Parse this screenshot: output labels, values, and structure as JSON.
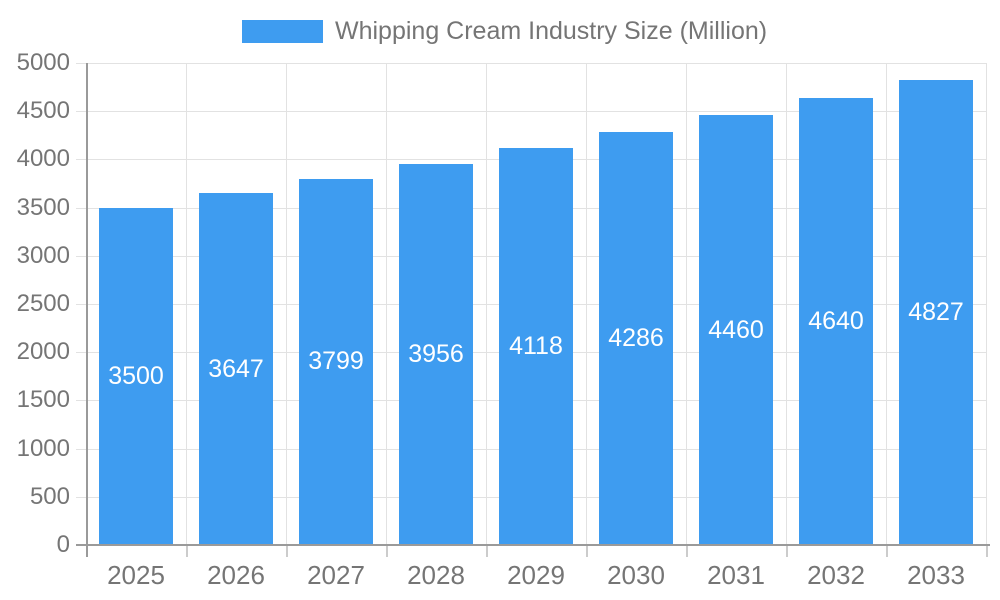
{
  "chart_data": {
    "type": "bar",
    "title": "Whipping Cream Industry Size (Million)",
    "categories": [
      "2025",
      "2026",
      "2027",
      "2028",
      "2029",
      "2030",
      "2031",
      "2032",
      "2033"
    ],
    "values": [
      3500,
      3647,
      3799,
      3956,
      4118,
      4286,
      4460,
      4640,
      4827
    ],
    "series_name": "Whipping Cream Industry Size (Million)",
    "xlabel": "",
    "ylabel": "",
    "ylim": [
      0,
      5000
    ],
    "ytick_step": 500,
    "ytick_labels": [
      "0",
      "500",
      "1000",
      "1500",
      "2000",
      "2500",
      "3000",
      "3500",
      "4000",
      "4500",
      "5000"
    ],
    "grid": true,
    "legend_position": "top-center",
    "value_labels": "inside-middle"
  },
  "colors": {
    "bar": "#3E9CF0",
    "bar_value_text": "#ffffff",
    "axis_line": "#9a9a9a",
    "gridline": "#e2e2e2",
    "tick": "#cccccc",
    "label_text": "#757575",
    "background": "#ffffff"
  }
}
